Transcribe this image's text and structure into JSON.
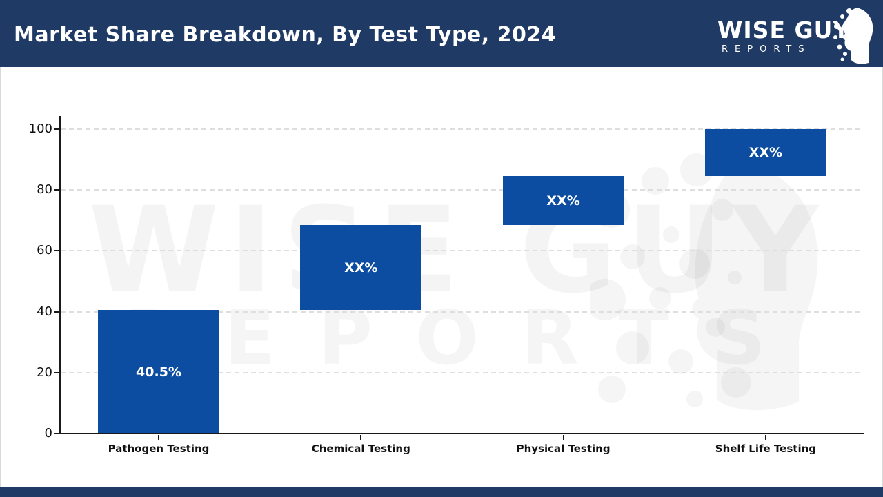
{
  "header": {
    "title": "Market Share Breakdown, By Test Type, 2024",
    "logo": {
      "line1": "WISE GUY",
      "line2": "REPORTS"
    }
  },
  "watermark": {
    "line1": "WISE GUY",
    "line2": "REPORTS"
  },
  "footer": {},
  "chart_data": {
    "type": "bar",
    "subtype": "waterfall",
    "title": "Market Share Breakdown, By Test Type, 2024",
    "categories": [
      "Pathogen Testing",
      "Chemical Testing",
      "Physical Testing",
      "Shelf Life Testing"
    ],
    "segments": [
      {
        "category": "Pathogen Testing",
        "start": 0,
        "end": 40.5,
        "label": "40.5%"
      },
      {
        "category": "Chemical Testing",
        "start": 40.5,
        "end": 68.5,
        "label": "XX%"
      },
      {
        "category": "Physical Testing",
        "start": 68.5,
        "end": 84.5,
        "label": "XX%"
      },
      {
        "category": "Shelf Life Testing",
        "start": 84.5,
        "end": 100,
        "label": "XX%"
      }
    ],
    "yticks": [
      0,
      20,
      40,
      60,
      80,
      100
    ],
    "ylim": [
      0,
      100
    ],
    "xlabel": "",
    "ylabel": "",
    "grid": "horizontal-dashed",
    "legend": "none",
    "colors": {
      "bar": "#0d4da1",
      "bar_label": "#ffffff",
      "header_bg": "#203a66",
      "footer_bg": "#203a66",
      "axis": "#1a1a1a",
      "gridline": "#dedede",
      "tick_text": "#111111",
      "watermark": "rgba(0,0,0,0.045)"
    }
  }
}
